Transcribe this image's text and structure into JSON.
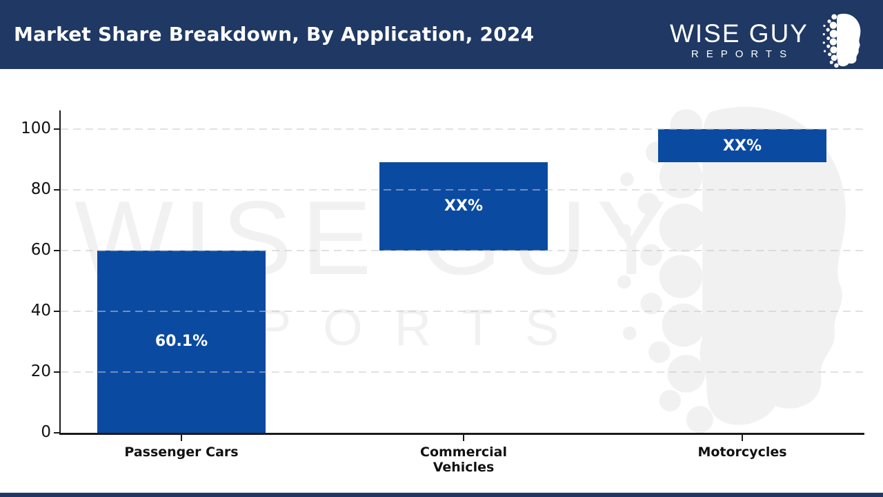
{
  "header": {
    "title": "Market Share Breakdown, By Application, 2024",
    "logo": {
      "brand_top": "WISE GUY",
      "brand_bottom": "REPORTS"
    }
  },
  "watermark": {
    "text_top": "WISE GUY",
    "text_bottom": "REPORTS"
  },
  "chart_data": {
    "type": "bar",
    "subtype": "waterfall-breakdown",
    "title": "Market Share Breakdown, By Application, 2024",
    "categories": [
      "Passenger Cars",
      "Commercial Vehicles",
      "Motorcycles"
    ],
    "segments": [
      {
        "category": "Passenger Cars",
        "start": 0,
        "end": 60.1,
        "label": "60.1%"
      },
      {
        "category": "Commercial Vehicles",
        "start": 60.1,
        "end": 89,
        "label": "XX%"
      },
      {
        "category": "Motorcycles",
        "start": 89,
        "end": 100,
        "label": "XX%"
      }
    ],
    "xlabel": "",
    "ylabel": "",
    "ylim": [
      0,
      100
    ],
    "yticks": [
      0,
      20,
      40,
      60,
      80,
      100
    ],
    "grid": {
      "horizontal": true,
      "style": "dashed",
      "drawn_above_bars": true
    },
    "legend": "none",
    "colors": {
      "bar": "#0b4aa1",
      "bar_label": "#ffffff",
      "axis": "#1a1a1a",
      "grid": "#d9d9d9",
      "header_bg": "#1f3864",
      "watermark": "#f1f1f2"
    }
  }
}
